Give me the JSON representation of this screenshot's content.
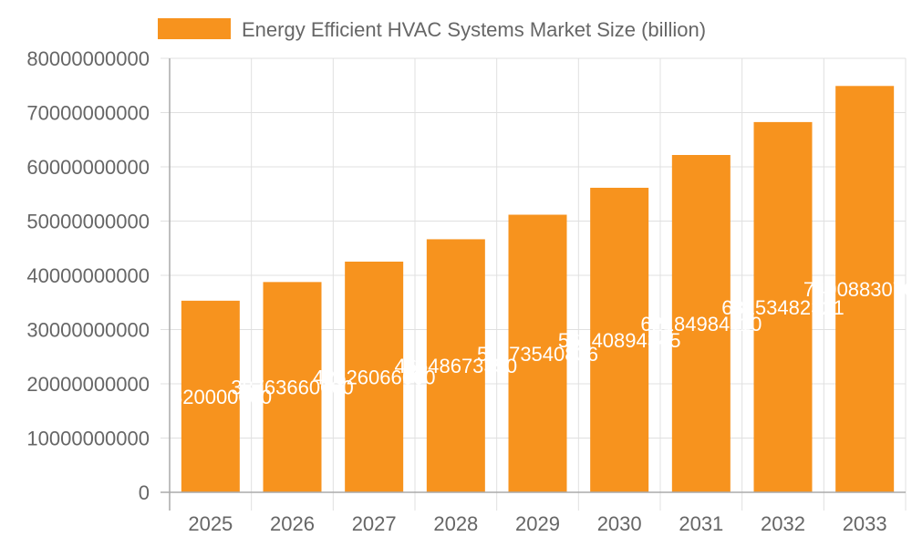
{
  "chart_data": {
    "type": "bar",
    "title": "",
    "xlabel": "",
    "ylabel": "",
    "categories": [
      "2025",
      "2026",
      "2027",
      "2028",
      "2029",
      "2030",
      "2031",
      "2032",
      "2033"
    ],
    "series": [
      {
        "name": "Energy Efficient HVAC Systems Market Size (billion)",
        "color": "#f7931e",
        "values": [
          35320000000,
          38763660000,
          42526066600,
          46648673350,
          51173540836,
          56140894345,
          62184984110,
          68253482321,
          74908830700
        ]
      }
    ],
    "ylim": [
      0,
      80000000000
    ],
    "yticks": [
      "0",
      "10000000000",
      "20000000000",
      "30000000000",
      "40000000000",
      "50000000000",
      "60000000000",
      "70000000000",
      "80000000000"
    ],
    "grid": true,
    "legend_position": "top",
    "data_labels": true
  }
}
